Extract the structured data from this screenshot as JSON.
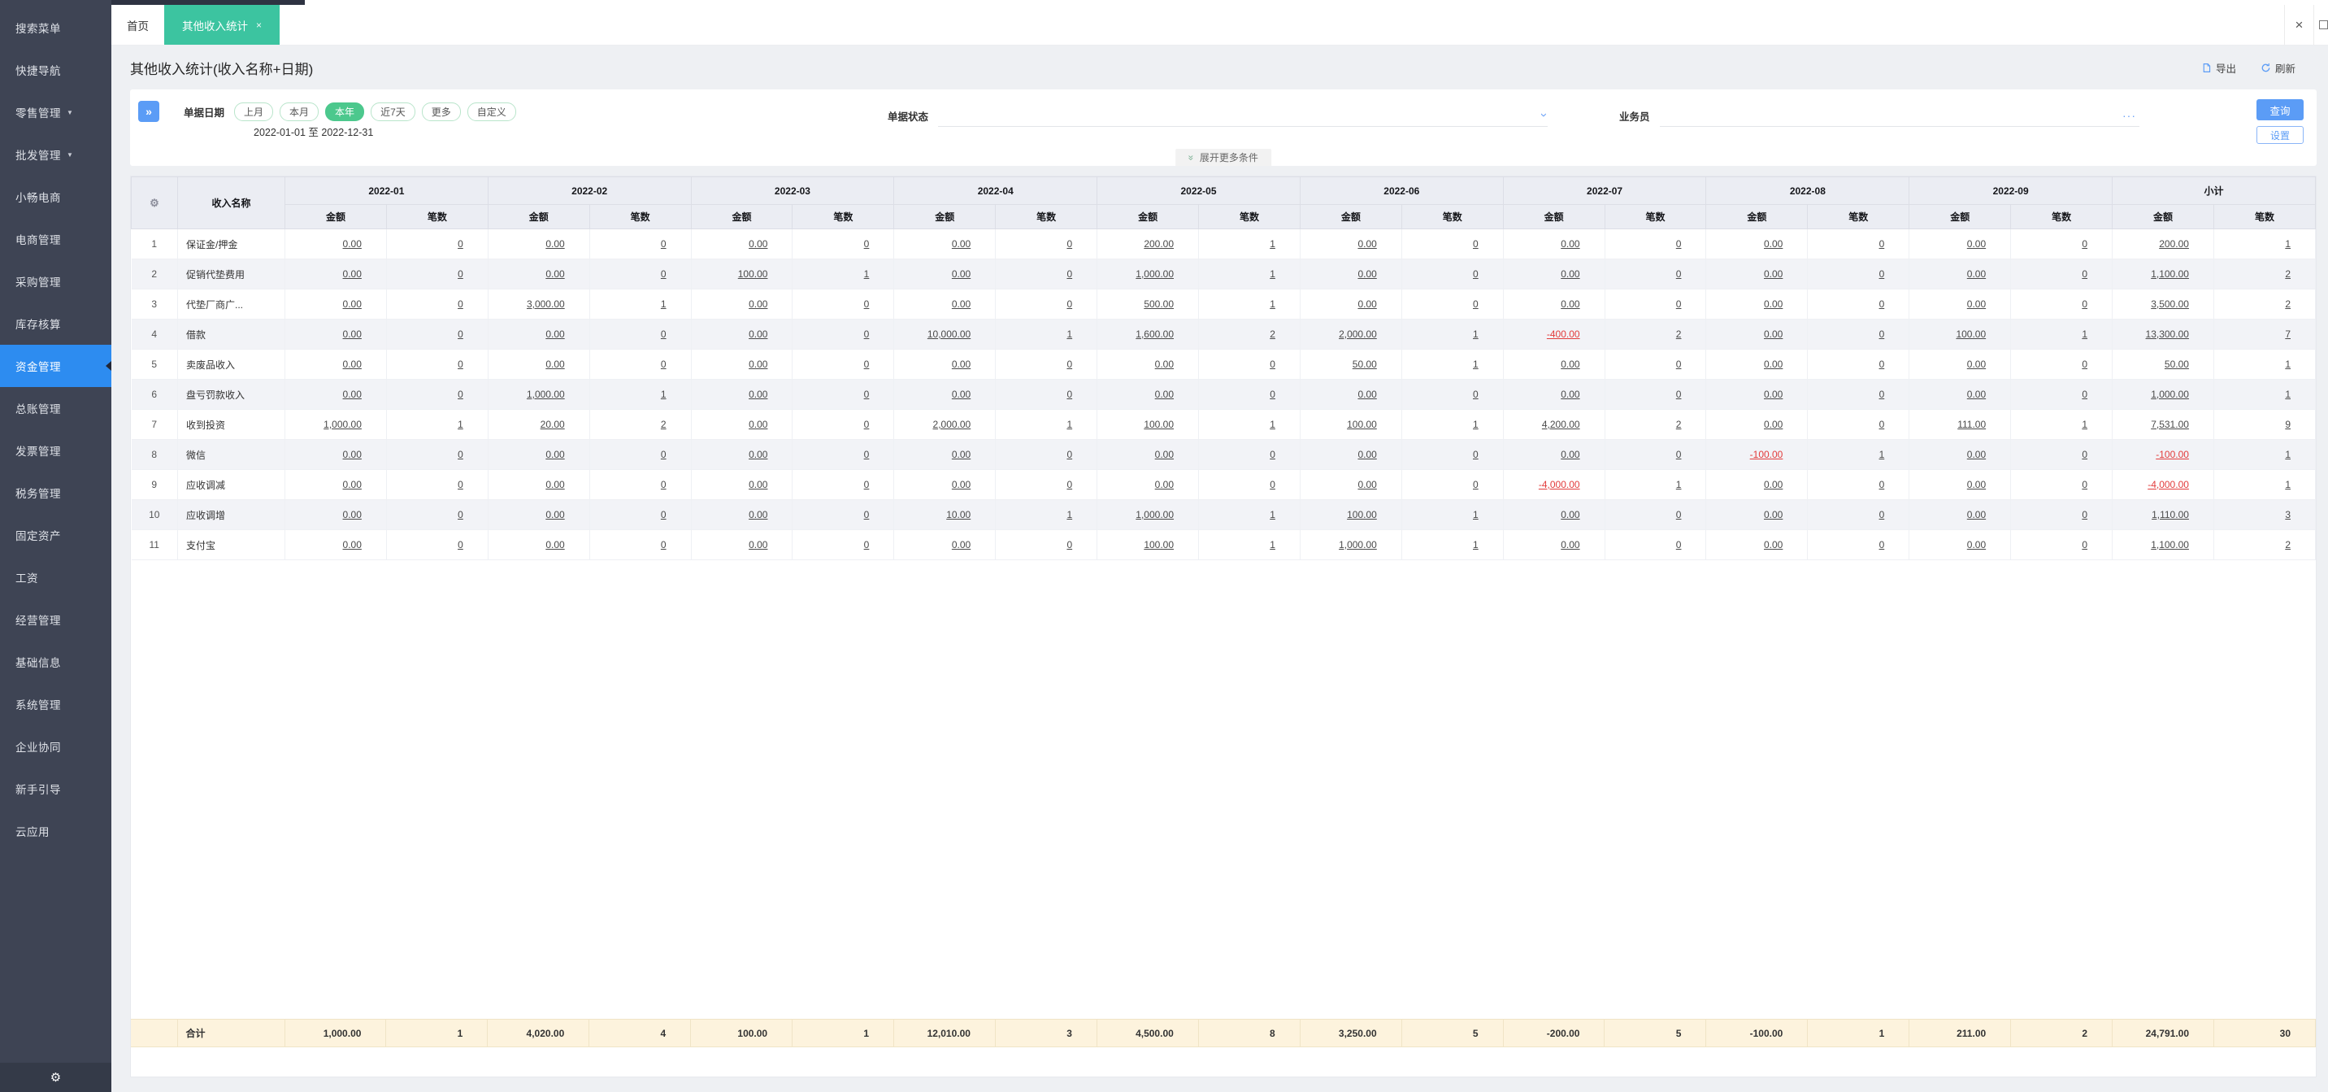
{
  "sidebar": {
    "active_label": "资金管理",
    "items": [
      {
        "label": "搜索菜单"
      },
      {
        "label": "快捷导航"
      },
      {
        "label": "零售管理",
        "caret": true
      },
      {
        "label": "批发管理",
        "caret": true
      },
      {
        "label": "小畅电商"
      },
      {
        "label": "电商管理"
      },
      {
        "label": "采购管理"
      },
      {
        "label": "库存核算"
      },
      {
        "label": "资金管理",
        "active": true
      },
      {
        "label": "总账管理"
      },
      {
        "label": "发票管理"
      },
      {
        "label": "税务管理"
      },
      {
        "label": "固定资产"
      },
      {
        "label": "工资"
      },
      {
        "label": "经营管理"
      },
      {
        "label": "基础信息"
      },
      {
        "label": "系统管理"
      },
      {
        "label": "企业协同"
      },
      {
        "label": "新手引导"
      },
      {
        "label": "云应用"
      }
    ]
  },
  "tabs": {
    "home": "首页",
    "active": "其他收入统计",
    "close": "×"
  },
  "window_controls": {
    "close": "×"
  },
  "header": {
    "title": "其他收入统计(收入名称+日期)",
    "export_label": "导出",
    "refresh_label": "刷新"
  },
  "filters": {
    "expander": "»",
    "date_label": "单据日期",
    "date_options": [
      "上月",
      "本月",
      "本年",
      "近7天",
      "更多",
      "自定义"
    ],
    "date_selected": "本年",
    "date_range": "2022-01-01 至 2022-12-31",
    "status_label": "单据状态",
    "salesman_label": "业务员",
    "more_ellipsis": "···",
    "expand_label": "展开更多条件",
    "search_label": "查询",
    "settings_label": "设置"
  },
  "table": {
    "name_header": "收入名称",
    "amount_header": "金额",
    "count_header": "笔数",
    "months": [
      "2022-01",
      "2022-02",
      "2022-03",
      "2022-04",
      "2022-05",
      "2022-06",
      "2022-07",
      "2022-08",
      "2022-09",
      "小计"
    ],
    "rows": [
      {
        "index": "1",
        "name": "保证金/押金",
        "cells": [
          [
            "0.00",
            "0"
          ],
          [
            "0.00",
            "0"
          ],
          [
            "0.00",
            "0"
          ],
          [
            "0.00",
            "0"
          ],
          [
            "200.00",
            "1"
          ],
          [
            "0.00",
            "0"
          ],
          [
            "0.00",
            "0"
          ],
          [
            "0.00",
            "0"
          ],
          [
            "0.00",
            "0"
          ],
          [
            "200.00",
            "1"
          ]
        ]
      },
      {
        "index": "2",
        "name": "促销代垫费用",
        "cells": [
          [
            "0.00",
            "0"
          ],
          [
            "0.00",
            "0"
          ],
          [
            "100.00",
            "1"
          ],
          [
            "0.00",
            "0"
          ],
          [
            "1,000.00",
            "1"
          ],
          [
            "0.00",
            "0"
          ],
          [
            "0.00",
            "0"
          ],
          [
            "0.00",
            "0"
          ],
          [
            "0.00",
            "0"
          ],
          [
            "1,100.00",
            "2"
          ]
        ]
      },
      {
        "index": "3",
        "name": "代垫厂商广...",
        "cells": [
          [
            "0.00",
            "0"
          ],
          [
            "3,000.00",
            "1"
          ],
          [
            "0.00",
            "0"
          ],
          [
            "0.00",
            "0"
          ],
          [
            "500.00",
            "1"
          ],
          [
            "0.00",
            "0"
          ],
          [
            "0.00",
            "0"
          ],
          [
            "0.00",
            "0"
          ],
          [
            "0.00",
            "0"
          ],
          [
            "3,500.00",
            "2"
          ]
        ]
      },
      {
        "index": "4",
        "name": "借款",
        "cells": [
          [
            "0.00",
            "0"
          ],
          [
            "0.00",
            "0"
          ],
          [
            "0.00",
            "0"
          ],
          [
            "10,000.00",
            "1"
          ],
          [
            "1,600.00",
            "2"
          ],
          [
            "2,000.00",
            "1"
          ],
          [
            "-400.00",
            "2"
          ],
          [
            "0.00",
            "0"
          ],
          [
            "100.00",
            "1"
          ],
          [
            "13,300.00",
            "7"
          ]
        ]
      },
      {
        "index": "5",
        "name": "卖废品收入",
        "cells": [
          [
            "0.00",
            "0"
          ],
          [
            "0.00",
            "0"
          ],
          [
            "0.00",
            "0"
          ],
          [
            "0.00",
            "0"
          ],
          [
            "0.00",
            "0"
          ],
          [
            "50.00",
            "1"
          ],
          [
            "0.00",
            "0"
          ],
          [
            "0.00",
            "0"
          ],
          [
            "0.00",
            "0"
          ],
          [
            "50.00",
            "1"
          ]
        ]
      },
      {
        "index": "6",
        "name": "盘亏罚款收入",
        "cells": [
          [
            "0.00",
            "0"
          ],
          [
            "1,000.00",
            "1"
          ],
          [
            "0.00",
            "0"
          ],
          [
            "0.00",
            "0"
          ],
          [
            "0.00",
            "0"
          ],
          [
            "0.00",
            "0"
          ],
          [
            "0.00",
            "0"
          ],
          [
            "0.00",
            "0"
          ],
          [
            "0.00",
            "0"
          ],
          [
            "1,000.00",
            "1"
          ]
        ]
      },
      {
        "index": "7",
        "name": "收到投资",
        "cells": [
          [
            "1,000.00",
            "1"
          ],
          [
            "20.00",
            "2"
          ],
          [
            "0.00",
            "0"
          ],
          [
            "2,000.00",
            "1"
          ],
          [
            "100.00",
            "1"
          ],
          [
            "100.00",
            "1"
          ],
          [
            "4,200.00",
            "2"
          ],
          [
            "0.00",
            "0"
          ],
          [
            "111.00",
            "1"
          ],
          [
            "7,531.00",
            "9"
          ]
        ]
      },
      {
        "index": "8",
        "name": "微信",
        "cells": [
          [
            "0.00",
            "0"
          ],
          [
            "0.00",
            "0"
          ],
          [
            "0.00",
            "0"
          ],
          [
            "0.00",
            "0"
          ],
          [
            "0.00",
            "0"
          ],
          [
            "0.00",
            "0"
          ],
          [
            "0.00",
            "0"
          ],
          [
            "-100.00",
            "1"
          ],
          [
            "0.00",
            "0"
          ],
          [
            "-100.00",
            "1"
          ]
        ]
      },
      {
        "index": "9",
        "name": "应收调减",
        "cells": [
          [
            "0.00",
            "0"
          ],
          [
            "0.00",
            "0"
          ],
          [
            "0.00",
            "0"
          ],
          [
            "0.00",
            "0"
          ],
          [
            "0.00",
            "0"
          ],
          [
            "0.00",
            "0"
          ],
          [
            "-4,000.00",
            "1"
          ],
          [
            "0.00",
            "0"
          ],
          [
            "0.00",
            "0"
          ],
          [
            "-4,000.00",
            "1"
          ]
        ]
      },
      {
        "index": "10",
        "name": "应收调增",
        "cells": [
          [
            "0.00",
            "0"
          ],
          [
            "0.00",
            "0"
          ],
          [
            "0.00",
            "0"
          ],
          [
            "10.00",
            "1"
          ],
          [
            "1,000.00",
            "1"
          ],
          [
            "100.00",
            "1"
          ],
          [
            "0.00",
            "0"
          ],
          [
            "0.00",
            "0"
          ],
          [
            "0.00",
            "0"
          ],
          [
            "1,110.00",
            "3"
          ]
        ]
      },
      {
        "index": "11",
        "name": "支付宝",
        "cells": [
          [
            "0.00",
            "0"
          ],
          [
            "0.00",
            "0"
          ],
          [
            "0.00",
            "0"
          ],
          [
            "0.00",
            "0"
          ],
          [
            "100.00",
            "1"
          ],
          [
            "1,000.00",
            "1"
          ],
          [
            "0.00",
            "0"
          ],
          [
            "0.00",
            "0"
          ],
          [
            "0.00",
            "0"
          ],
          [
            "1,100.00",
            "2"
          ]
        ]
      }
    ],
    "total_label": "合计",
    "totals": [
      [
        "1,000.00",
        "1"
      ],
      [
        "4,020.00",
        "4"
      ],
      [
        "100.00",
        "1"
      ],
      [
        "12,010.00",
        "3"
      ],
      [
        "4,500.00",
        "8"
      ],
      [
        "3,250.00",
        "5"
      ],
      [
        "-200.00",
        "5"
      ],
      [
        "-100.00",
        "1"
      ],
      [
        "211.00",
        "2"
      ],
      [
        "24,791.00",
        "30"
      ]
    ]
  }
}
